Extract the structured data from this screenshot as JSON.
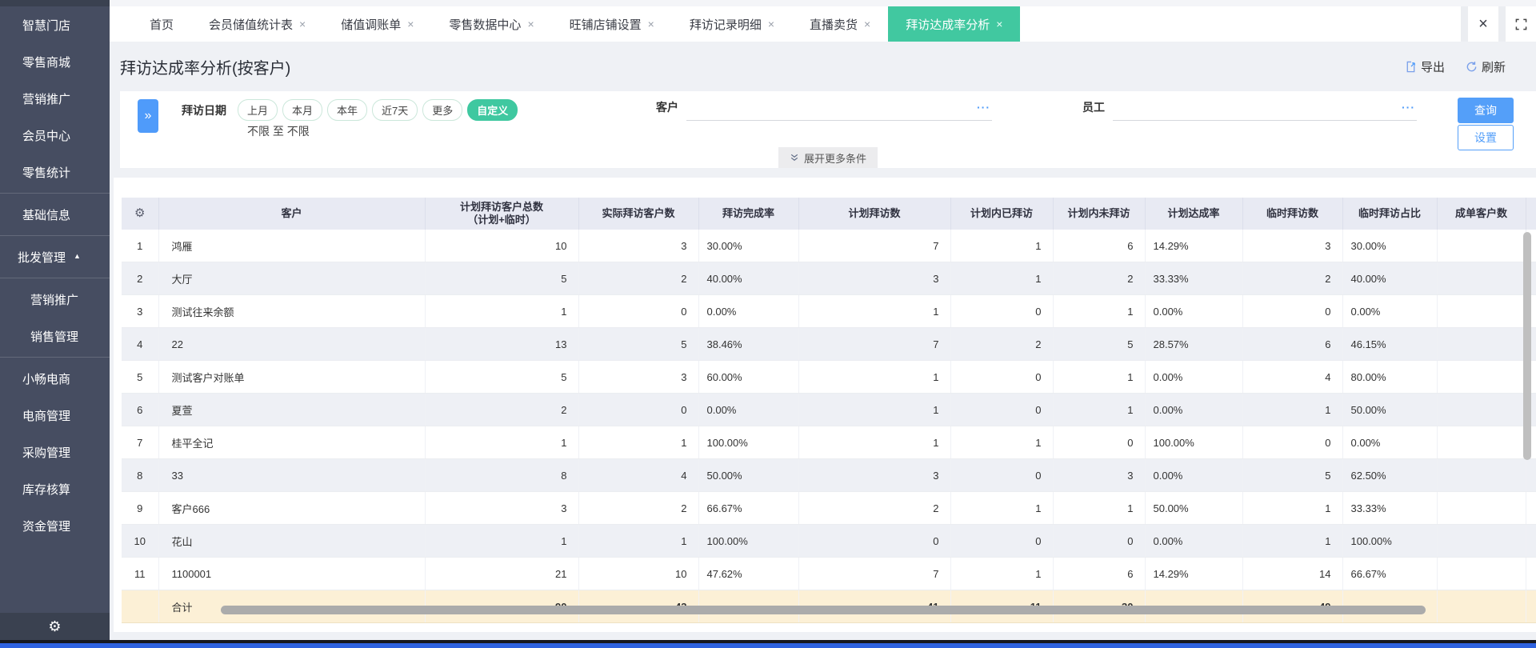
{
  "sidebar": {
    "items": [
      {
        "id": "smart-store",
        "label": "智慧门店",
        "type": "item"
      },
      {
        "id": "retail-mall",
        "label": "零售商城",
        "type": "item"
      },
      {
        "id": "marketing",
        "label": "营销推广",
        "type": "item"
      },
      {
        "id": "member-center",
        "label": "会员中心",
        "type": "item"
      },
      {
        "id": "retail-stats",
        "label": "零售统计",
        "type": "item"
      },
      {
        "type": "divider"
      },
      {
        "id": "basic-info",
        "label": "基础信息",
        "type": "item"
      },
      {
        "type": "divider"
      },
      {
        "id": "wholesale",
        "label": "批发管理",
        "type": "group",
        "expanded": true
      },
      {
        "type": "divider"
      },
      {
        "id": "marketing-sub",
        "label": "营销推广",
        "type": "sub"
      },
      {
        "id": "sales-mgmt",
        "label": "销售管理",
        "type": "sub"
      },
      {
        "type": "divider"
      },
      {
        "id": "xiaochang-ec",
        "label": "小畅电商",
        "type": "item"
      },
      {
        "id": "ec-mgmt",
        "label": "电商管理",
        "type": "item"
      },
      {
        "id": "purchase",
        "label": "采购管理",
        "type": "item"
      },
      {
        "id": "inventory",
        "label": "库存核算",
        "type": "item"
      },
      {
        "id": "funds",
        "label": "资金管理",
        "type": "item"
      }
    ],
    "footer_gear_icon": "⚙"
  },
  "tabs": [
    {
      "id": "home",
      "label": "首页",
      "closable": false,
      "active": false
    },
    {
      "id": "member-stored-value",
      "label": "会员储值统计表",
      "closable": true,
      "active": false
    },
    {
      "id": "stored-value-adjust",
      "label": "储值调账单",
      "closable": true,
      "active": false
    },
    {
      "id": "retail-data-center",
      "label": "零售数据中心",
      "closable": true,
      "active": false
    },
    {
      "id": "wangpu-settings",
      "label": "旺铺店铺设置",
      "closable": true,
      "active": false
    },
    {
      "id": "visit-records",
      "label": "拜访记录明细",
      "closable": true,
      "active": false
    },
    {
      "id": "live-selling",
      "label": "直播卖货",
      "closable": true,
      "active": false
    },
    {
      "id": "visit-rate-analysis",
      "label": "拜访达成率分析",
      "closable": true,
      "active": true
    }
  ],
  "window": {
    "close_glyph": "×"
  },
  "page": {
    "title": "拜访达成率分析(按客户)"
  },
  "toolbar": {
    "export_label": "导出",
    "refresh_label": "刷新"
  },
  "filters": {
    "collapse_glyph": "»",
    "date_label": "拜访日期",
    "date_options": [
      "上月",
      "本月",
      "本年",
      "近7天",
      "更多"
    ],
    "custom_label": "自定义",
    "range_from": "不限",
    "range_sep": "至",
    "range_to": "不限",
    "customer_label": "客户",
    "employee_label": "员工",
    "more_dots": "···",
    "query_label": "查询",
    "settings_label": "设置",
    "expand_more_label": "展开更多条件"
  },
  "table": {
    "columns": [
      "客户",
      "计划拜访客户总数\n（计划+临时）",
      "实际拜访客户数",
      "拜访完成率",
      "计划拜访数",
      "计划内已拜访",
      "计划内未拜访",
      "计划达成率",
      "临时拜访数",
      "临时拜访占比",
      "成单客户数"
    ],
    "rows": [
      [
        "1",
        "鸿雁",
        "10",
        "3",
        "30.00%",
        "7",
        "1",
        "6",
        "14.29%",
        "3",
        "30.00%",
        ""
      ],
      [
        "2",
        "大厅",
        "5",
        "2",
        "40.00%",
        "3",
        "1",
        "2",
        "33.33%",
        "2",
        "40.00%",
        ""
      ],
      [
        "3",
        "测试往来余额",
        "1",
        "0",
        "0.00%",
        "1",
        "0",
        "1",
        "0.00%",
        "0",
        "0.00%",
        ""
      ],
      [
        "4",
        "22",
        "13",
        "5",
        "38.46%",
        "7",
        "2",
        "5",
        "28.57%",
        "6",
        "46.15%",
        ""
      ],
      [
        "5",
        "测试客户对账单",
        "5",
        "3",
        "60.00%",
        "1",
        "0",
        "1",
        "0.00%",
        "4",
        "80.00%",
        ""
      ],
      [
        "6",
        "夏萱",
        "2",
        "0",
        "0.00%",
        "1",
        "0",
        "1",
        "0.00%",
        "1",
        "50.00%",
        ""
      ],
      [
        "7",
        "桂平全记",
        "1",
        "1",
        "100.00%",
        "1",
        "1",
        "0",
        "100.00%",
        "0",
        "0.00%",
        ""
      ],
      [
        "8",
        "33",
        "8",
        "4",
        "50.00%",
        "3",
        "0",
        "3",
        "0.00%",
        "5",
        "62.50%",
        ""
      ],
      [
        "9",
        "客户666",
        "3",
        "2",
        "66.67%",
        "2",
        "1",
        "1",
        "50.00%",
        "1",
        "33.33%",
        ""
      ],
      [
        "10",
        "花山",
        "1",
        "1",
        "100.00%",
        "0",
        "0",
        "0",
        "0.00%",
        "1",
        "100.00%",
        ""
      ],
      [
        "11",
        "1100001",
        "21",
        "10",
        "47.62%",
        "7",
        "1",
        "6",
        "14.29%",
        "14",
        "66.67%",
        ""
      ]
    ],
    "total": [
      "",
      "合计",
      "90",
      "43",
      "",
      "41",
      "11",
      "30",
      "",
      "49",
      "",
      ""
    ]
  },
  "colors": {
    "sidebar_bg": "#464d61",
    "active_tab_green": "#41c8a0",
    "accent_blue": "#4f9bfa",
    "header_bg": "#e8eaf3",
    "stripe_bg": "#eef0f5",
    "total_row_bg": "#fcf0d6"
  }
}
